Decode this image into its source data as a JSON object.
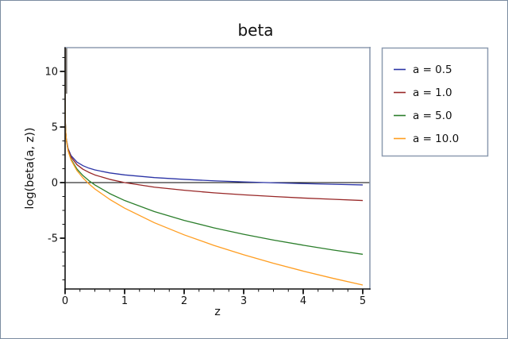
{
  "window": {
    "background": "#ffffff",
    "border_color": "#7b8ca0"
  },
  "chart": {
    "plot_border_color": "#8d9bb0",
    "axis_color": "#111111",
    "zero_line_color": "#000000",
    "text_color": "#111111",
    "legend_border_color": "#8d9bb0",
    "legend_background": "#ffffff",
    "x_major": {
      "values": [
        0,
        1,
        2,
        3,
        4,
        5
      ],
      "labels": [
        "0",
        "1",
        "2",
        "3",
        "4",
        "5"
      ]
    },
    "x_minor": [
      0.25,
      0.5,
      0.75,
      1.25,
      1.5,
      1.75,
      2.25,
      2.5,
      2.75,
      3.25,
      3.5,
      3.75,
      4.25,
      4.5,
      4.75
    ],
    "y_major": {
      "values": [
        -5,
        0,
        5,
        10
      ],
      "labels": [
        "-5",
        "0",
        "5",
        "10"
      ]
    },
    "y_minor": [
      -8.75,
      -7.5,
      -6.25,
      -3.75,
      -2.5,
      -1.25,
      1.25,
      2.5,
      3.75,
      6.25,
      7.5,
      8.75,
      11.25
    ]
  },
  "chart_data": {
    "type": "line",
    "title": "beta",
    "xlabel": "z",
    "ylabel": "log(beta(a, z))",
    "xlim": [
      0,
      5.12
    ],
    "ylim": [
      -9.57,
      12.14
    ],
    "grid": false,
    "zero_line": 0,
    "legend_position": "right",
    "x": [
      2e-06,
      0.0002,
      0.001,
      0.005,
      0.01,
      0.02,
      0.05,
      0.1,
      0.2,
      0.3,
      0.4,
      0.5,
      0.75,
      1.0,
      1.5,
      2.0,
      2.5,
      3.0,
      3.5,
      4.0,
      4.5,
      5.0
    ],
    "series": [
      {
        "name": "a = 0.5",
        "color": "#2b34a6",
        "values": [
          13.12,
          8.52,
          6.91,
          5.31,
          4.62,
          3.94,
          3.06,
          2.43,
          1.84,
          1.52,
          1.3,
          1.14,
          0.87,
          0.69,
          0.45,
          0.29,
          0.16,
          0.06,
          -0.02,
          -0.09,
          -0.15,
          -0.21
        ]
      },
      {
        "name": "a = 1.0",
        "color": "#982727",
        "values": [
          13.12,
          8.52,
          6.91,
          5.3,
          4.61,
          3.91,
          3.0,
          2.3,
          1.61,
          1.2,
          0.92,
          0.69,
          0.29,
          0.0,
          -0.41,
          -0.69,
          -0.92,
          -1.1,
          -1.25,
          -1.39,
          -1.5,
          -1.61
        ]
      },
      {
        "name": "a = 5.0",
        "color": "#2b7e2b",
        "values": [
          13.12,
          8.51,
          6.91,
          5.29,
          4.58,
          3.87,
          2.89,
          2.1,
          1.22,
          0.63,
          0.18,
          -0.21,
          -0.99,
          -1.61,
          -2.61,
          -3.4,
          -4.07,
          -4.65,
          -5.17,
          -5.63,
          -6.06,
          -6.45
        ]
      },
      {
        "name": "a = 10.0",
        "color": "#ff9d20",
        "values": [
          13.12,
          8.51,
          6.9,
          5.28,
          4.58,
          3.86,
          2.86,
          2.03,
          1.07,
          0.42,
          -0.11,
          -0.57,
          -1.51,
          -2.3,
          -3.61,
          -4.7,
          -5.65,
          -6.49,
          -7.26,
          -7.96,
          -8.61,
          -9.21
        ]
      }
    ]
  }
}
